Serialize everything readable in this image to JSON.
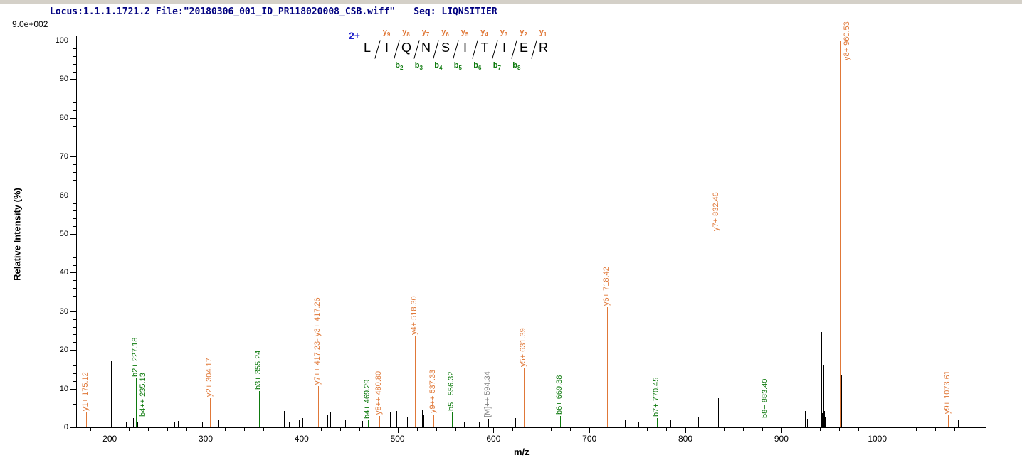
{
  "header": {
    "locus_file": "Locus:1.1.1.1721.2 File:\"20180306_001_ID_PR118020008_CSB.wiff\"",
    "seq_label": "Seq: LIQNSITIER"
  },
  "intensity_scale": "9.0e+002",
  "sequence": {
    "charge": "2+",
    "residues": [
      "L",
      "I",
      "Q",
      "N",
      "S",
      "I",
      "T",
      "I",
      "E",
      "R"
    ],
    "y_ions": [
      "y9",
      "y8",
      "y7",
      "y6",
      "y5",
      "y4",
      "y3",
      "y2",
      "y1"
    ],
    "b_ions": [
      null,
      "b2",
      "b3",
      "b4",
      "b5",
      "b6",
      "b7",
      "b8",
      null
    ]
  },
  "colors": {
    "y_ion": "#e07838",
    "b_ion": "#0e7a0e",
    "precursor_label": "#808080",
    "peak_black": "#000000",
    "header_navy": "#000080",
    "charge_blue": "#2222cc"
  },
  "axes": {
    "x_title": "m/z",
    "y_title": "Relative  Intensity (%)",
    "x_range": [
      165,
      1113
    ],
    "x_major_step": 100,
    "x_minor_step": 20,
    "x_labeled_ticks": [
      200,
      300,
      400,
      500,
      600,
      700,
      800,
      900,
      1000
    ],
    "y_range": [
      0,
      100
    ],
    "y_major_step": 10,
    "y_minor_step": 2,
    "y_labeled_ticks": [
      0,
      10,
      20,
      30,
      40,
      50,
      60,
      70,
      80,
      90,
      100
    ]
  },
  "chart_data": {
    "type": "bar",
    "title": "MS/MS fragment spectrum of peptide LIQNSITIER (2+)",
    "xlabel": "m/z",
    "ylabel": "Relative  Intensity (%)",
    "ylim": [
      0,
      100
    ],
    "xlim": [
      165,
      1113
    ],
    "base_peak_absolute_intensity": "9.0e+002",
    "labeled_peaks": [
      {
        "label": "y1+ 175.12",
        "mz": 175.12,
        "intensity": 3.9,
        "type": "y"
      },
      {
        "label": "b2+ 227.18",
        "mz": 227.18,
        "intensity": 12.7,
        "type": "b"
      },
      {
        "label": "b4++ 235.13",
        "mz": 235.13,
        "intensity": 2.4,
        "type": "b"
      },
      {
        "label": "y2+ 304.17",
        "mz": 304.17,
        "intensity": 7.5,
        "type": "y"
      },
      {
        "label": "b3+ 355.24",
        "mz": 355.24,
        "intensity": 9.4,
        "type": "b"
      },
      {
        "label": "y7++ 417.23- y3+ 417.26",
        "mz": 417.25,
        "intensity": 10.7,
        "type": "y"
      },
      {
        "label": "b4+ 469.29",
        "mz": 469.29,
        "intensity": 1.8,
        "type": "b"
      },
      {
        "label": "y8++ 480.80",
        "mz": 480.8,
        "intensity": 3.0,
        "type": "y"
      },
      {
        "label": "y4+ 518.30",
        "mz": 518.3,
        "intensity": 23.5,
        "type": "y"
      },
      {
        "label": "y9++ 537.33",
        "mz": 537.33,
        "intensity": 3.3,
        "type": "y"
      },
      {
        "label": "b5+ 556.32",
        "mz": 556.32,
        "intensity": 3.9,
        "type": "b"
      },
      {
        "label": "[M]++ 594.34",
        "mz": 594.34,
        "intensity": 2.2,
        "type": "M"
      },
      {
        "label": "y5+ 631.39",
        "mz": 631.39,
        "intensity": 15.3,
        "type": "y"
      },
      {
        "label": "b6+ 669.38",
        "mz": 669.38,
        "intensity": 3.0,
        "type": "b"
      },
      {
        "label": "y6+ 718.42",
        "mz": 718.42,
        "intensity": 31.0,
        "type": "y"
      },
      {
        "label": "b7+ 770.45",
        "mz": 770.45,
        "intensity": 2.4,
        "type": "b"
      },
      {
        "label": "y7+ 832.46",
        "mz": 832.46,
        "intensity": 50.4,
        "type": "y"
      },
      {
        "label": "b8+ 883.40",
        "mz": 883.4,
        "intensity": 2.0,
        "type": "b"
      },
      {
        "label": "y8+ 960.53",
        "mz": 960.53,
        "intensity": 100.0,
        "type": "y",
        "label_side": true
      },
      {
        "label": "y9+ 1073.61",
        "mz": 1073.61,
        "intensity": 3.2,
        "type": "y"
      }
    ],
    "background_peaks": [
      [
        201,
        17.1
      ],
      [
        217,
        1.5
      ],
      [
        224.5,
        2.3
      ],
      [
        229,
        1.2
      ],
      [
        243.5,
        2.9
      ],
      [
        246,
        3.5
      ],
      [
        267,
        1.5
      ],
      [
        271,
        1.6
      ],
      [
        296,
        1.5
      ],
      [
        303,
        1.4
      ],
      [
        310,
        5.8
      ],
      [
        313,
        2.0
      ],
      [
        333,
        2.0
      ],
      [
        344,
        1.4
      ],
      [
        381.5,
        4.3
      ],
      [
        387,
        1.2
      ],
      [
        397,
        1.8
      ],
      [
        400.5,
        2.4
      ],
      [
        408,
        1.7
      ],
      [
        427,
        3.3
      ],
      [
        430,
        3.9
      ],
      [
        445,
        2.0
      ],
      [
        463,
        1.6
      ],
      [
        472.6,
        2.2
      ],
      [
        492.4,
        3.9
      ],
      [
        498.5,
        4.2
      ],
      [
        503.5,
        3.2
      ],
      [
        509.6,
        2.8
      ],
      [
        525.7,
        4.4
      ],
      [
        527,
        3.2
      ],
      [
        528.9,
        2.3
      ],
      [
        547,
        1.0
      ],
      [
        569,
        1.5
      ],
      [
        585,
        1.3
      ],
      [
        623,
        2.3
      ],
      [
        652,
        2.6
      ],
      [
        701,
        2.3
      ],
      [
        737,
        1.8
      ],
      [
        751,
        1.4
      ],
      [
        753,
        1.2
      ],
      [
        784,
        2.0
      ],
      [
        813.5,
        2.6
      ],
      [
        815,
        6.0
      ],
      [
        834,
        7.5
      ],
      [
        924.4,
        4.3
      ],
      [
        926.5,
        2.2
      ],
      [
        938,
        1.2
      ],
      [
        941.5,
        24.6
      ],
      [
        942.3,
        3.6
      ],
      [
        943.5,
        16.2
      ],
      [
        944.3,
        4.2
      ],
      [
        945,
        2.8
      ],
      [
        962.3,
        13.6
      ],
      [
        971,
        3.0
      ],
      [
        1010,
        1.7
      ],
      [
        1082.5,
        2.3
      ],
      [
        1084,
        1.9
      ]
    ]
  }
}
